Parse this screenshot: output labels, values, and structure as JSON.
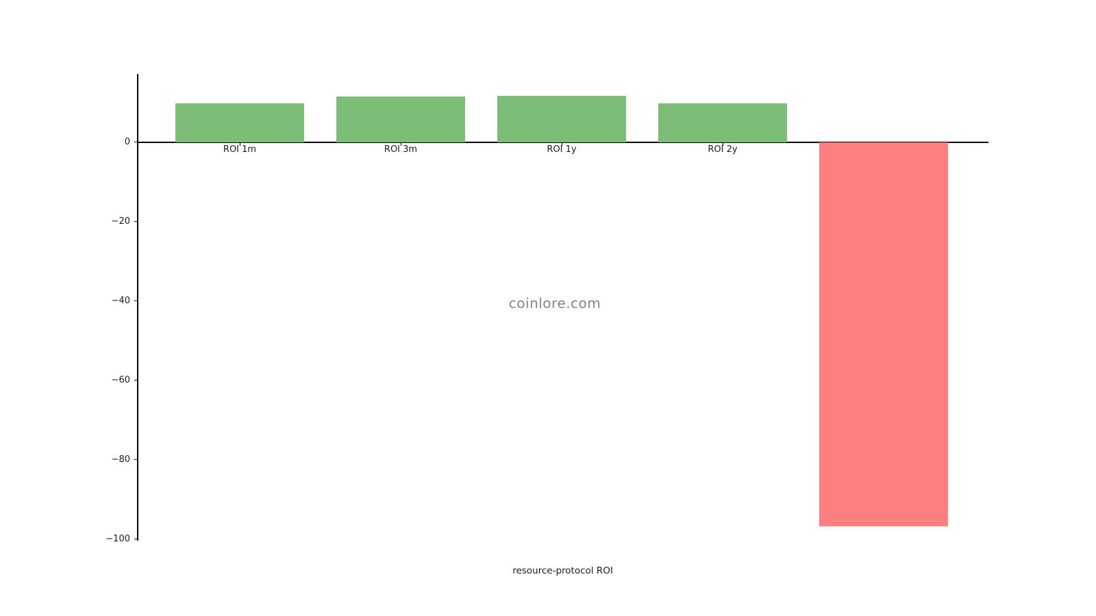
{
  "chart_data": {
    "type": "bar",
    "title": "",
    "xlabel": "resource-protocol ROI",
    "ylabel": "",
    "categories": [
      "ROI 1m",
      "ROI 3m",
      "ROI 1y",
      "ROI 2y",
      ""
    ],
    "values": [
      9.7,
      11.5,
      11.6,
      9.8,
      -96.8
    ],
    "series": [
      {
        "name": "ROI",
        "values": [
          9.7,
          11.5,
          11.6,
          9.8,
          -96.8
        ]
      }
    ],
    "bar_colors": [
      "#7cbd78",
      "#7cbd78",
      "#7cbd78",
      "#7cbd78",
      "#ff7f7f"
    ],
    "positive_color": "#7cbd78",
    "negative_color": "#ff7f7f",
    "axis_color": "#000000",
    "yticks": [
      0,
      -20,
      -40,
      -60,
      -80,
      -100
    ],
    "ytick_labels": [
      "0",
      "−20",
      "−40",
      "−60",
      "−80",
      "−100"
    ],
    "ylim": [
      -102.2,
      17.0
    ],
    "grid": false,
    "legend_position": "none",
    "watermark": "coinlore.com"
  }
}
